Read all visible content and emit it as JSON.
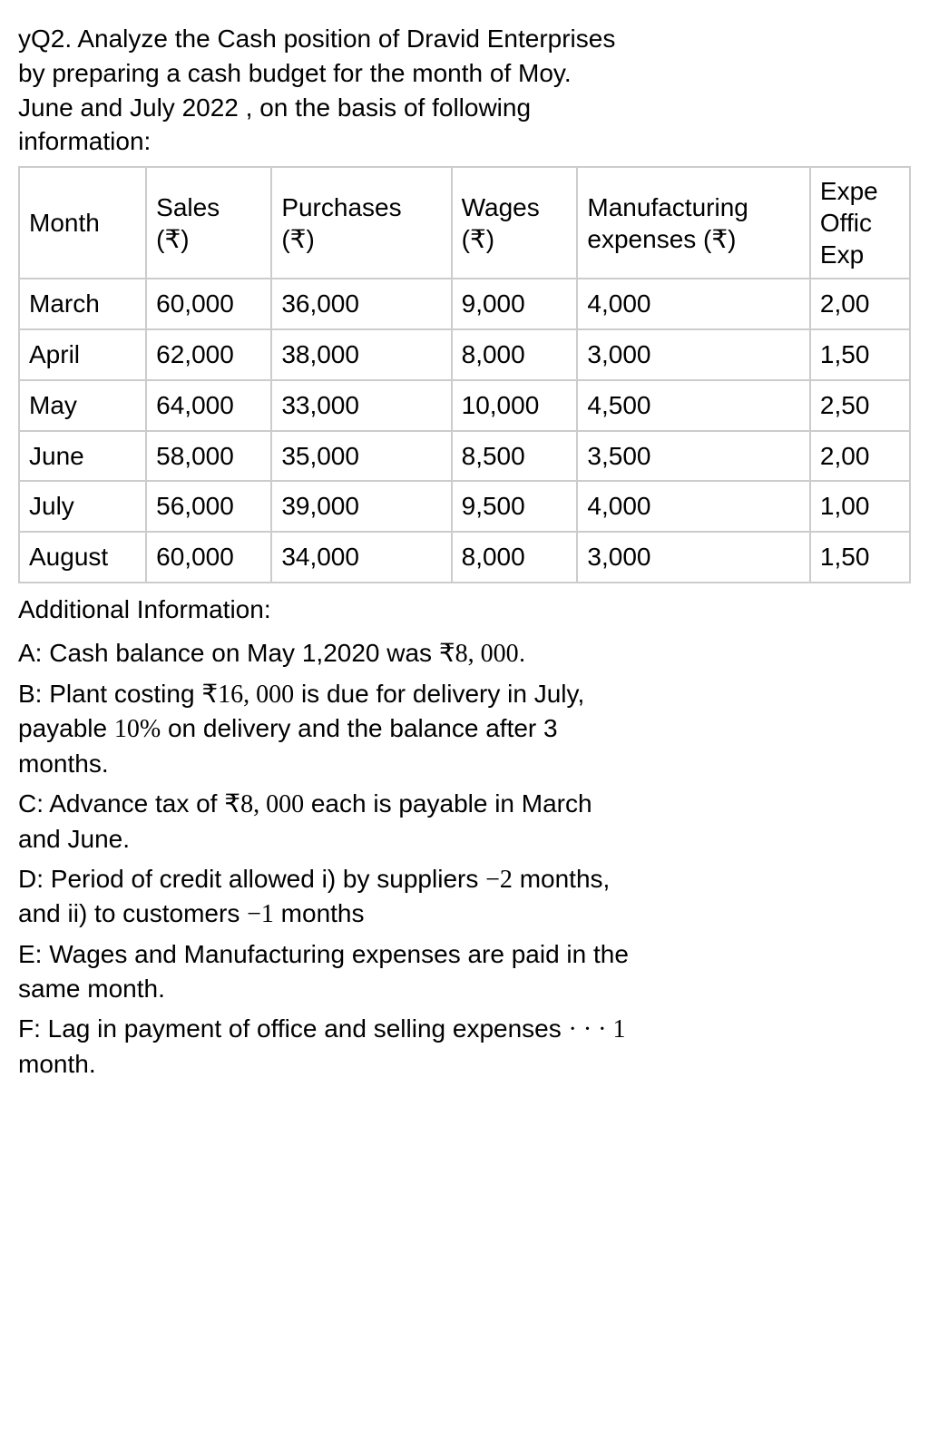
{
  "question": {
    "line1": "yQ2. Analyze the Cash position of Dravid Enterprises",
    "line2": "by preparing a cash budget for the month of Moy.",
    "line3": "June and July 2022 , on the basis of following",
    "line4": "information:"
  },
  "table": {
    "headers": {
      "month": "Month",
      "sales_l1": "Sales",
      "sales_l2": "(₹)",
      "purchases_l1": "Purchases",
      "purchases_l2": "(₹)",
      "wages_l1": "Wages",
      "wages_l2": "(₹)",
      "mfg_l1": "Manufacturing",
      "mfg_l2": "expenses (₹)",
      "exp_l1": "Expe",
      "exp_l2": "Offic",
      "exp_l3": "Exp"
    },
    "rows": [
      {
        "month": "March",
        "sales": "60,000",
        "purchases": "36,000",
        "wages": "9,000",
        "mfg": "4,000",
        "exp": "2,00"
      },
      {
        "month": "April",
        "sales": "62,000",
        "purchases": "38,000",
        "wages": "8,000",
        "mfg": "3,000",
        "exp": "1,50"
      },
      {
        "month": "May",
        "sales": "64,000",
        "purchases": "33,000",
        "wages": "10,000",
        "mfg": "4,500",
        "exp": "2,50"
      },
      {
        "month": "June",
        "sales": "58,000",
        "purchases": "35,000",
        "wages": "8,500",
        "mfg": "3,500",
        "exp": "2,00"
      },
      {
        "month": "July",
        "sales": "56,000",
        "purchases": "39,000",
        "wages": "9,500",
        "mfg": "4,000",
        "exp": "1,00"
      },
      {
        "month": "August",
        "sales": "60,000",
        "purchases": "34,000",
        "wages": "8,000",
        "mfg": "3,000",
        "exp": "1,50"
      }
    ]
  },
  "additional_title": "Additional Information:",
  "info": {
    "A_pre": "A: Cash balance on May 1,2020 was ",
    "A_amt": "₹8, 000",
    "A_post": ".",
    "B_pre": "B: Plant costing ",
    "B_amt": "₹16, 000",
    "B_mid": " is due for delivery in July,",
    "B_l2_pre": "payable ",
    "B_pct": "10%",
    "B_l2_post": " on delivery and the balance after 3",
    "B_l3": "months.",
    "C_pre": "C: Advance tax of ",
    "C_amt": "₹8, 000",
    "C_post": " each is payable in March",
    "C_l2": "and June.",
    "D_pre": "D: Period of credit allowed i) by suppliers ",
    "D_v1": "−2",
    "D_post": " months,",
    "D_l2_pre": "and ii) to customers ",
    "D_v2": "−1",
    "D_l2_post": " months",
    "E_l1": "E: Wages and Manufacturing expenses are paid in the",
    "E_l2": "same month.",
    "F_pre": "F: Lag in payment of office and selling expenses ",
    "F_dots": "· · · 1",
    "F_l2": "month."
  }
}
